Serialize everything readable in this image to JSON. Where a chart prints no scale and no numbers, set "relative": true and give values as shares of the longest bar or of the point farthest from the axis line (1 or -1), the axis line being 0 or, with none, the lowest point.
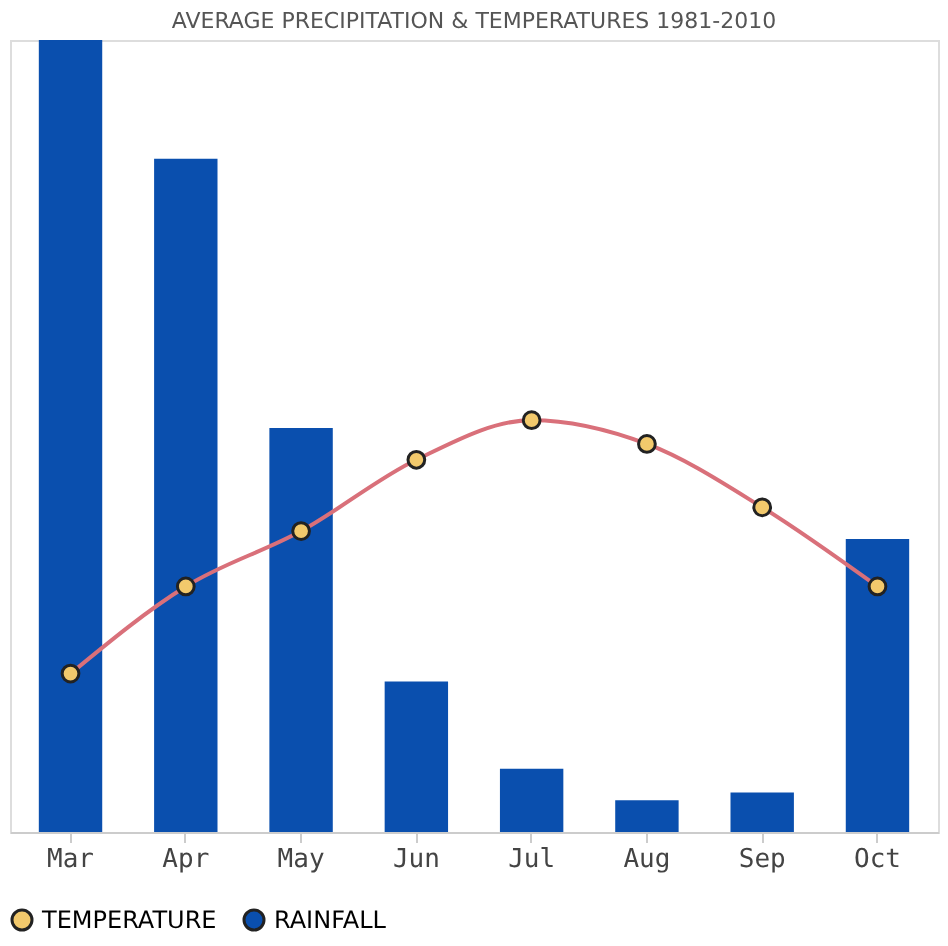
{
  "chart_data": {
    "type": "bar",
    "title": "AVERAGE PRECIPITATION & TEMPERATURES 1981-2010",
    "categories": [
      "Mar",
      "Apr",
      "May",
      "Jun",
      "Jul",
      "Aug",
      "Sep",
      "Oct"
    ],
    "relative": true,
    "legend": "bottom",
    "marker": "circle",
    "series": [
      {
        "name": "TEMPERATURE",
        "type": "line",
        "color": "#f2c96c",
        "values": [
          0.2,
          0.31,
          0.38,
          0.47,
          0.52,
          0.49,
          0.41,
          0.31
        ]
      },
      {
        "name": "RAINFALL",
        "color": "#0a4fae",
        "values": [
          1,
          0.85,
          0.51,
          0.19,
          0.08,
          0.04,
          0.05,
          0.37
        ]
      }
    ]
  }
}
